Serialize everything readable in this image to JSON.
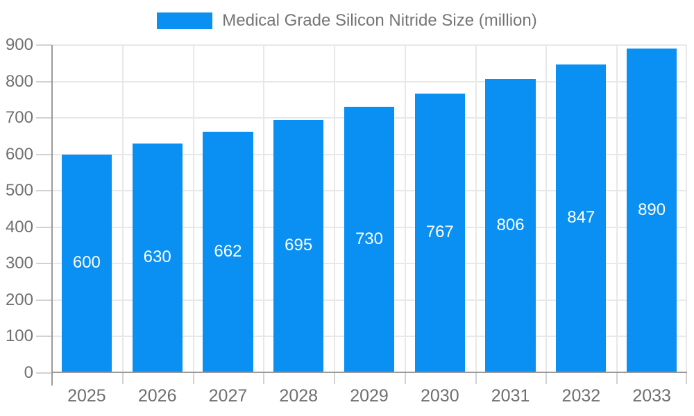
{
  "legend": {
    "label": "Medical Grade Silicon Nitride Size (million)"
  },
  "colors": {
    "bar": "#0a8ff2",
    "axis_line": "#9a9a9a",
    "grid_line": "#e8e8e8",
    "tick_line": "#d2d2d2",
    "axis_text": "#6f6f6f",
    "legend_text": "#757575",
    "value_text": "#ffffff",
    "background": "#ffffff"
  },
  "chart_data": {
    "type": "bar",
    "title": "Medical Grade Silicon Nitride Size (million)",
    "categories": [
      "2025",
      "2026",
      "2027",
      "2028",
      "2029",
      "2030",
      "2031",
      "2032",
      "2033"
    ],
    "values": [
      600,
      630,
      662,
      695,
      730,
      767,
      806,
      847,
      890
    ],
    "xlabel": "",
    "ylabel": "",
    "ylim": [
      0,
      900
    ],
    "yticks": [
      0,
      100,
      200,
      300,
      400,
      500,
      600,
      700,
      800,
      900
    ],
    "grid": "both",
    "legend_position": "top-center",
    "value_label_position": "bar-center",
    "bar_width_fraction": 0.71
  }
}
